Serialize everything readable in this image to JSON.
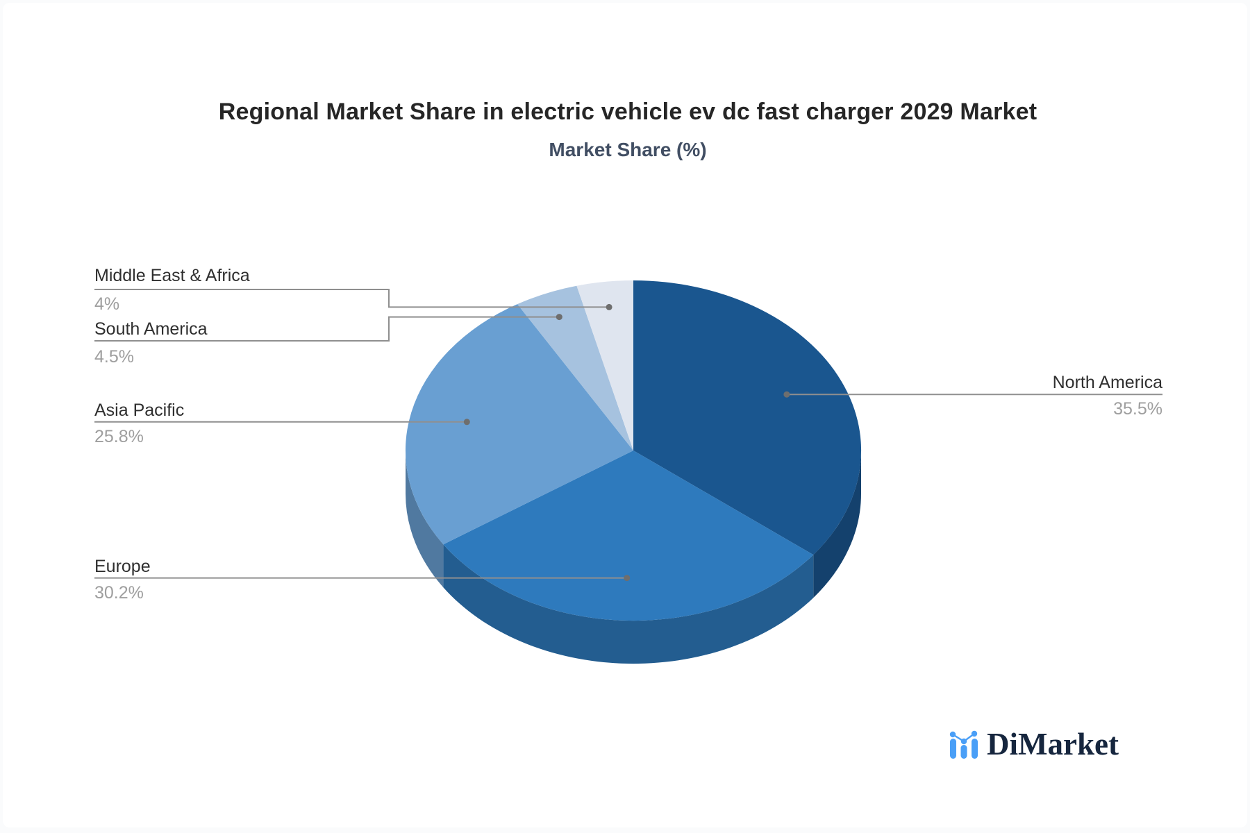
{
  "header": {
    "title": "Regional Market Share in electric vehicle ev dc fast charger 2029 Market",
    "subtitle": "Market Share (%)"
  },
  "chart_data": {
    "type": "pie",
    "title": "Regional Market Share in electric vehicle ev dc fast charger 2029 Market",
    "subtitle": "Market Share (%)",
    "unit": "%",
    "style": "3d-pie, no legend, callout labels with leader lines and dots",
    "start_angle_deg": 0,
    "direction": "clockwise",
    "slices": [
      {
        "label": "North America",
        "value": 35.5,
        "value_label": "35.5%",
        "color": "#1a568f"
      },
      {
        "label": "Europe",
        "value": 30.2,
        "value_label": "30.2%",
        "color": "#2e7abd"
      },
      {
        "label": "Asia Pacific",
        "value": 25.8,
        "value_label": "25.8%",
        "color": "#699fd2"
      },
      {
        "label": "South America",
        "value": 4.5,
        "value_label": "4.5%",
        "color": "#a6c2df"
      },
      {
        "label": "Middle East & Africa",
        "value": 4.0,
        "value_label": "4%",
        "color": "#dfe5ef"
      }
    ]
  },
  "branding": {
    "logo_text": "DiMarket",
    "logo_text_color": "#16263e",
    "logo_icon": "bar-chart-with-trend-dots-icon",
    "logo_icon_color": "#4a9ff7"
  },
  "colors": {
    "background": "#ffffff",
    "title_text": "#262626",
    "subtitle_text": "#414e63",
    "region_label_text": "#2f2f2f",
    "percent_label_text": "#9e9e9e",
    "leader_line": "#8f8f8f",
    "leader_dot": "#6e6e6e"
  }
}
